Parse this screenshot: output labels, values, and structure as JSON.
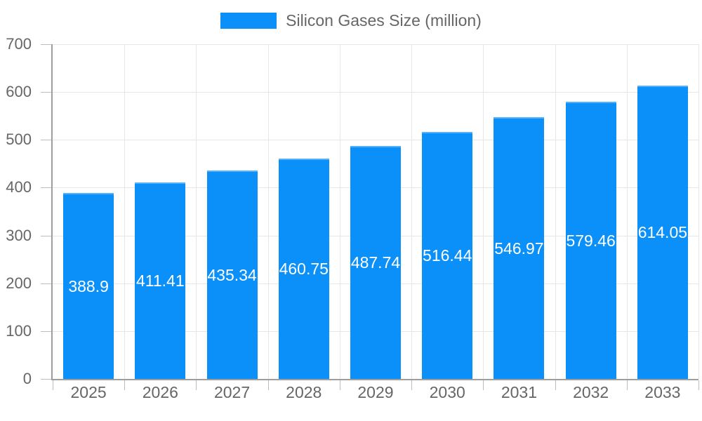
{
  "legend": {
    "label": "Silicon Gases Size (million)",
    "swatch_color": "#0a90f8"
  },
  "chart_data": {
    "type": "bar",
    "title": "Silicon Gases Size (million)",
    "categories": [
      "2025",
      "2026",
      "2027",
      "2028",
      "2029",
      "2030",
      "2031",
      "2032",
      "2033"
    ],
    "values": [
      388.9,
      411.41,
      435.34,
      460.75,
      487.74,
      516.44,
      546.97,
      579.46,
      614.05
    ],
    "value_labels": [
      "388.9",
      "411.41",
      "435.34",
      "460.75",
      "487.74",
      "516.44",
      "546.97",
      "579.46",
      "614.05"
    ],
    "xlabel": "",
    "ylabel": "",
    "ylim": [
      0,
      700
    ],
    "ytick_step": 100,
    "ytick_labels": [
      "0",
      "100",
      "200",
      "300",
      "400",
      "500",
      "600",
      "700"
    ],
    "grid": true,
    "legend_position": "top",
    "colors": {
      "bar_fill": "#0a90f8",
      "bar_border": "#56b1fa",
      "value_label": "#ffffff",
      "axis_line": "#9e9e9e",
      "gridline": "#e6e6e6",
      "tick": "#bdbdbd",
      "tick_label": "#666666",
      "legend_text": "#666666"
    }
  }
}
